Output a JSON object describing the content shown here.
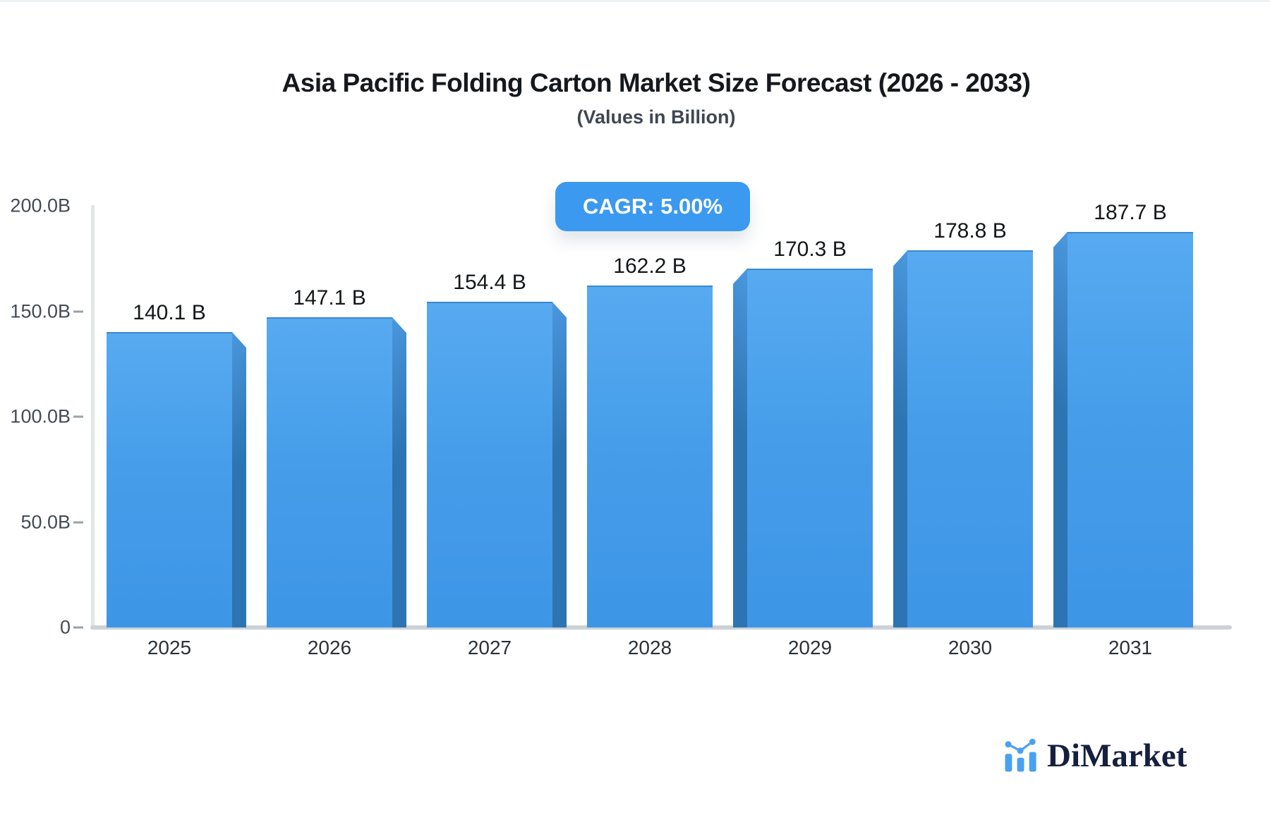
{
  "header": {
    "title": "Asia Pacific Folding Carton Market Size Forecast (2026 - 2033)",
    "subtitle": "(Values in Billion)"
  },
  "badge": {
    "label": "CAGR: 5.00%",
    "background_color": "#3b99ef",
    "text_color": "#ffffff"
  },
  "brand": {
    "name": "DiMarket",
    "icon": "bar-chart-logo-icon",
    "icon_color": "#4aa0f2",
    "text_color": "#15203f"
  },
  "colors": {
    "bar_face_top": "#57aaf0",
    "bar_face_bottom": "#3d95e6",
    "bar_side": "#2d74b2",
    "axis_line": "#e2e5e9",
    "baseline": "#ccd1d7"
  },
  "chart_data": {
    "type": "bar",
    "title": "Asia Pacific Folding Carton Market Size Forecast (2026 - 2033)",
    "subtitle": "(Values in Billion)",
    "annotation": "CAGR: 5.00%",
    "categories": [
      "2025",
      "2026",
      "2027",
      "2028",
      "2029",
      "2030",
      "2031"
    ],
    "values": [
      140.1,
      147.1,
      154.4,
      162.2,
      170.3,
      178.8,
      187.7
    ],
    "value_labels": [
      "140.1 B",
      "147.1 B",
      "154.4 B",
      "162.2 B",
      "170.3 B",
      "178.8 B",
      "187.7 B"
    ],
    "xlabel": "",
    "ylabel": "",
    "ylim": [
      0,
      200
    ],
    "y_ticks": [
      {
        "label": "200.0B",
        "value": 200
      },
      {
        "label": "150.0B",
        "value": 150
      },
      {
        "label": "100.0B",
        "value": 100
      },
      {
        "label": "50.0B",
        "value": 50
      },
      {
        "label": "0",
        "value": 0
      }
    ],
    "grid": false,
    "legend": false,
    "bar_style": "3d-extruded-blue"
  }
}
